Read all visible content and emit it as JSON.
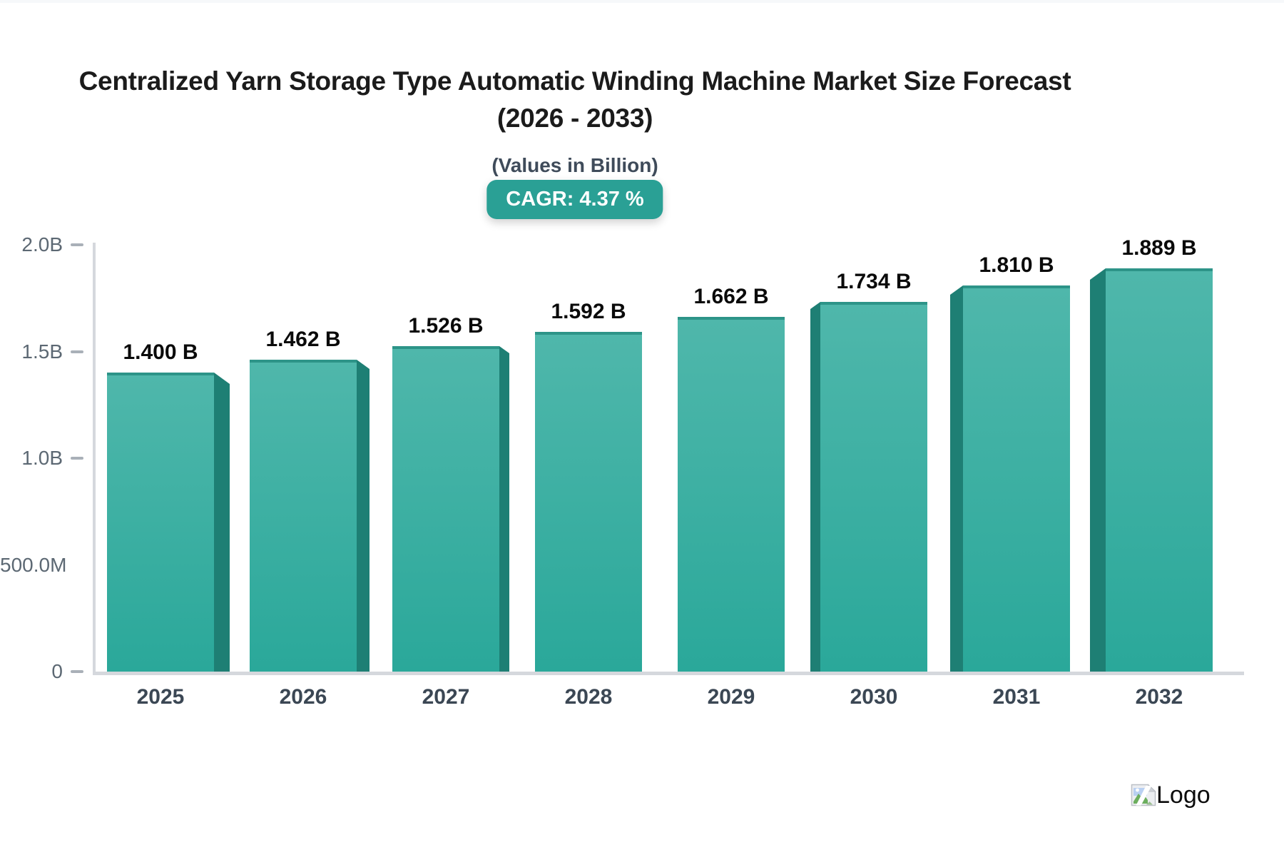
{
  "header": {
    "title_line1": "Centralized Yarn Storage Type Automatic Winding Machine Market Size Forecast",
    "title_line2": "(2026 - 2033)",
    "subtitle": "(Values in Billion)",
    "cagr_badge": "CAGR: 4.37 %"
  },
  "footer": {
    "logo_text": "Logo"
  },
  "chart_data": {
    "type": "bar",
    "title": "Centralized Yarn Storage Type Automatic Winding Machine Market Size Forecast (2026 - 2033)",
    "subtitle": "(Values in Billion)",
    "cagr_percent": 4.37,
    "categories": [
      "2025",
      "2026",
      "2027",
      "2028",
      "2029",
      "2030",
      "2031",
      "2032"
    ],
    "values_billions": [
      1.4,
      1.462,
      1.526,
      1.592,
      1.662,
      1.734,
      1.81,
      1.889
    ],
    "bar_labels": [
      "1.400 B",
      "1.462 B",
      "1.526 B",
      "1.592 B",
      "1.662 B",
      "1.734 B",
      "1.810 B",
      "1.889 B"
    ],
    "y_ticks": [
      {
        "label": "2.0B",
        "value": 2.0,
        "dash": true
      },
      {
        "label": "1.5B",
        "value": 1.5,
        "dash": true
      },
      {
        "label": "1.0B",
        "value": 1.0,
        "dash": true
      },
      {
        "label": "500.0M",
        "value": 0.5,
        "dash": false
      },
      {
        "label": "0",
        "value": 0,
        "dash": true
      }
    ],
    "ylim": [
      0,
      2.0
    ],
    "xlabel": "",
    "ylabel": "",
    "grid": false,
    "legend": false,
    "pseudo_3d": true,
    "style": {
      "bar_face_top": "#4FB7AB",
      "bar_face_bottom": "#2AA89A",
      "bar_top_edge": "#2D9488",
      "bar_side": "#1E7F74",
      "badge_bg": "#2AA095",
      "axis_line": "#D5D8DD",
      "tick_mark": "#A9B0B8",
      "tick_text": "#5C6873",
      "x_label_text": "#3B4754"
    }
  }
}
